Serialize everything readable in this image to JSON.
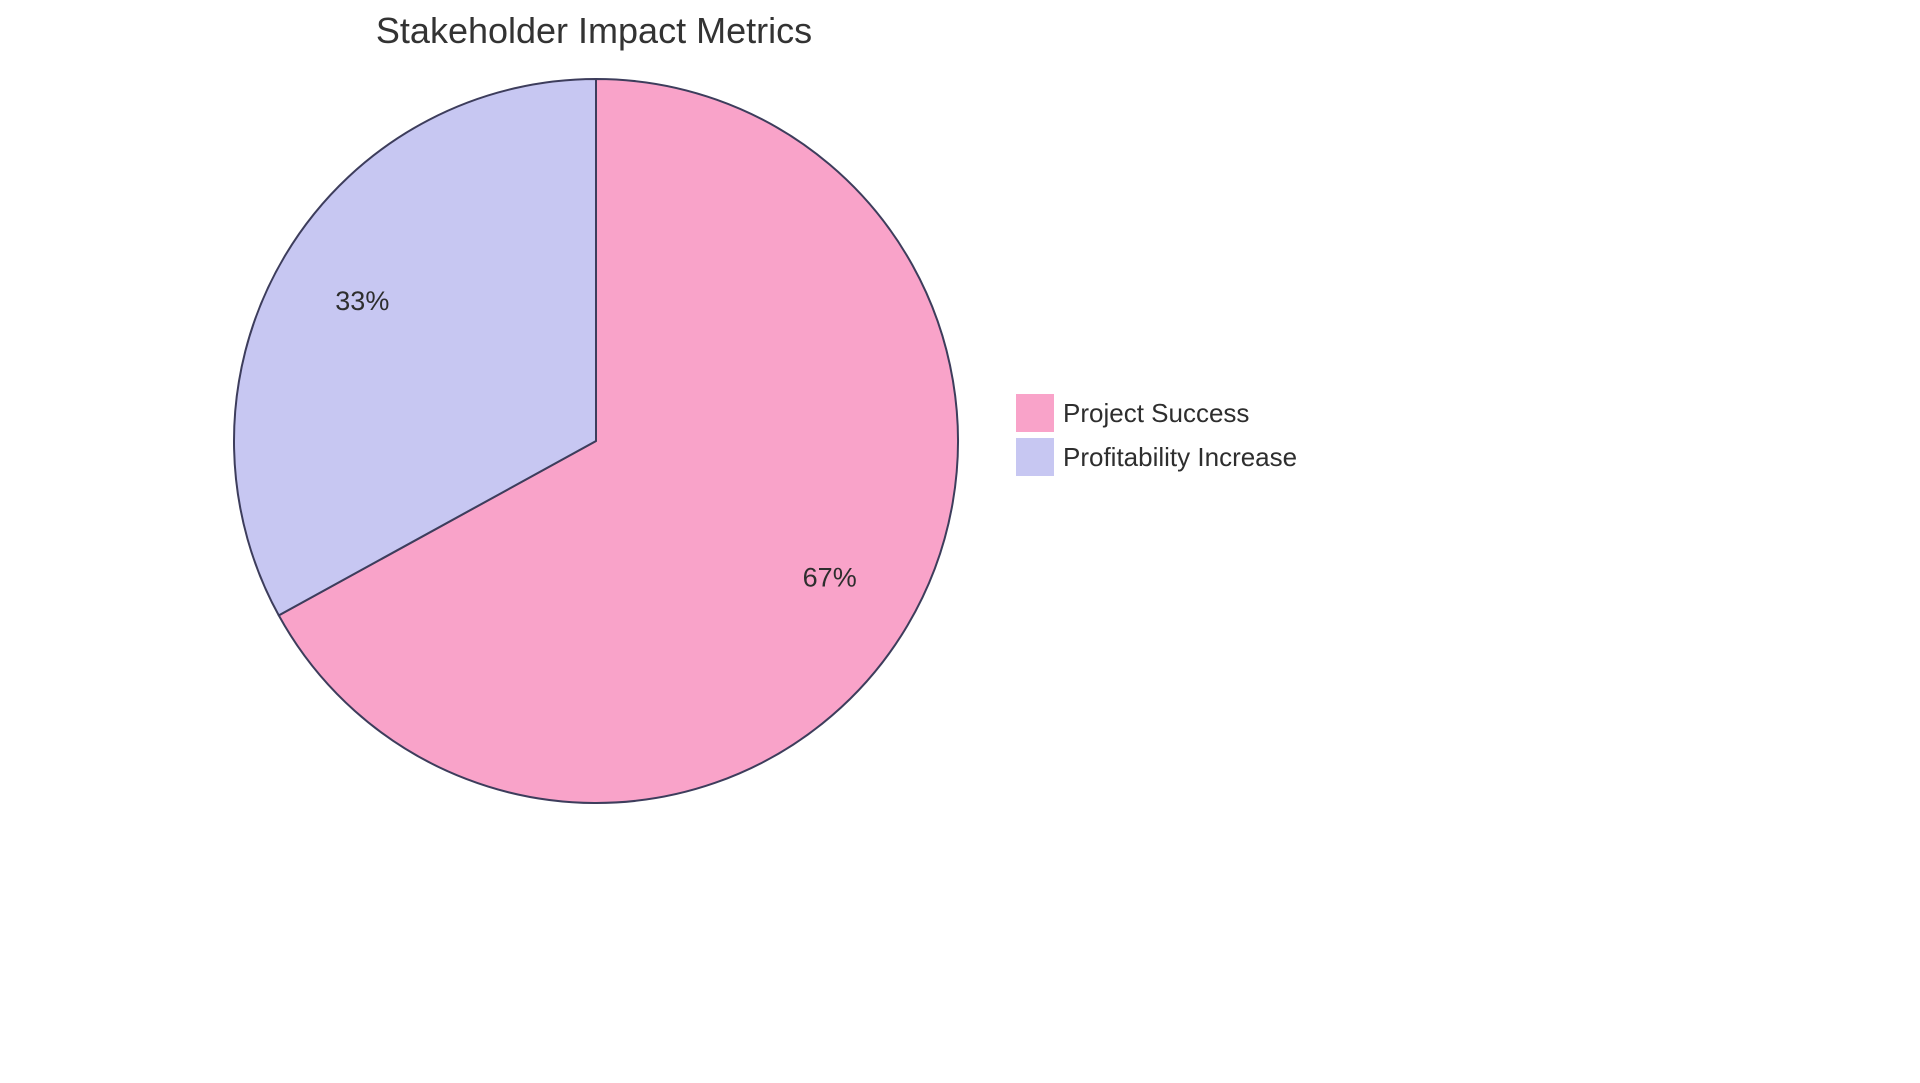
{
  "chart_data": {
    "type": "pie",
    "title": "Stakeholder Impact Metrics",
    "slices": [
      {
        "label": "Project Success",
        "value": 67,
        "display": "67%",
        "color": "#F9A3C9"
      },
      {
        "label": "Profitability Increase",
        "value": 33,
        "display": "33%",
        "color": "#C7C7F2"
      }
    ],
    "stroke_color": "#3D3D5C",
    "label_color": "#2E2E2E",
    "legend_position": "right",
    "start_angle_deg": -90,
    "direction": "clockwise"
  }
}
